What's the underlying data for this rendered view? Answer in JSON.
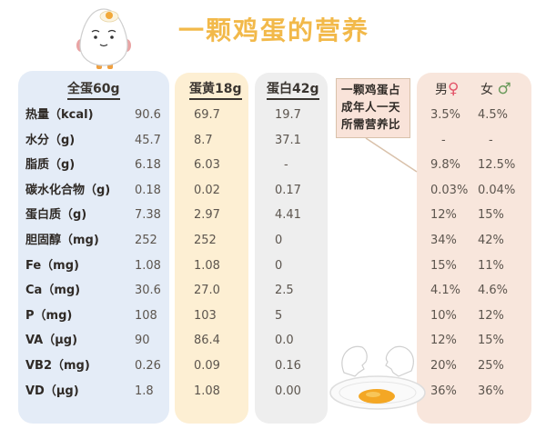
{
  "title": "一颗鸡蛋的营养",
  "columns": {
    "whole": "全蛋60g",
    "yolk": "蛋黄18g",
    "white": "蛋白42g"
  },
  "callout": {
    "line1": "一颗鸡蛋占",
    "line2": "成年人一天",
    "line3": "所需营养比"
  },
  "gender": {
    "male_label": "男",
    "male_symbol": "♀",
    "female_label": "女",
    "female_symbol": "♂"
  },
  "colors": {
    "title": "#f2b94a",
    "whole_panel": "#e4ecf7",
    "yolk_panel": "#fdefd3",
    "white_panel": "#eeeeee",
    "pct_panel": "#f8e6dc",
    "male_symbol": "#e3566a",
    "female_symbol": "#6a9a5b"
  },
  "rows": [
    {
      "label": "热量（kcal)",
      "whole": "90.6",
      "yolk": "69.7",
      "white": "19.7",
      "male": "3.5%",
      "female": "4.5%"
    },
    {
      "label": "水分（g)",
      "whole": "45.7",
      "yolk": "8.7",
      "white": "37.1",
      "male": "-",
      "female": "-"
    },
    {
      "label": "脂质（g)",
      "whole": "6.18",
      "yolk": "6.03",
      "white": "-",
      "male": "9.8%",
      "female": "12.5%"
    },
    {
      "label": "碳水化合物（g)",
      "whole": "0.18",
      "yolk": "0.02",
      "white": "0.17",
      "male": "0.03%",
      "female": "0.04%"
    },
    {
      "label": "蛋白质（g)",
      "whole": "7.38",
      "yolk": "2.97",
      "white": "4.41",
      "male": "12%",
      "female": "15%"
    },
    {
      "label": "胆固醇（mg)",
      "whole": "252",
      "yolk": "252",
      "white": "0",
      "male": "34%",
      "female": "42%"
    },
    {
      "label": "Fe（mg)",
      "whole": "1.08",
      "yolk": "1.08",
      "white": "0",
      "male": "15%",
      "female": "11%"
    },
    {
      "label": "Ca（mg)",
      "whole": "30.6",
      "yolk": "27.0",
      "white": "2.5",
      "male": "4.1%",
      "female": "4.6%"
    },
    {
      "label": "P（mg)",
      "whole": "108",
      "yolk": "103",
      "white": "5",
      "male": "10%",
      "female": "12%"
    },
    {
      "label": "VA（μg)",
      "whole": "90",
      "yolk": "86.4",
      "white": "0.0",
      "male": "12%",
      "female": "15%"
    },
    {
      "label": "VB2（mg)",
      "whole": "0.26",
      "yolk": "0.09",
      "white": "0.16",
      "male": "20%",
      "female": "25%"
    },
    {
      "label": "VD（μg)",
      "whole": "1.8",
      "yolk": "1.08",
      "white": "0.00",
      "male": "36%",
      "female": "36%"
    }
  ],
  "icons": {
    "mascot": "egg-mascot-icon",
    "cracked_egg": "cracked-egg-icon"
  }
}
